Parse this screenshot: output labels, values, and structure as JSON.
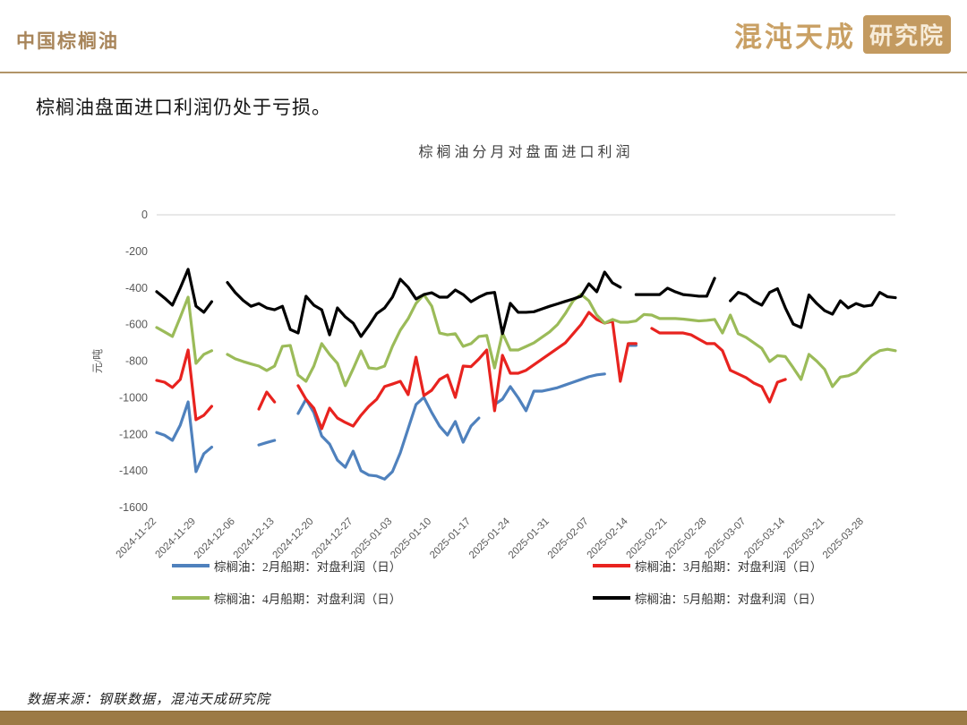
{
  "header": {
    "title": "中国棕榈油",
    "logo_script": "混沌天成",
    "logo_badge": "研究院"
  },
  "subtitle": "棕榈油盘面进口利润仍处于亏损。",
  "footer": {
    "source": "数据来源：钢联数据，混沌天成研究院"
  },
  "colors": {
    "accent_gold": "#a8855a",
    "rule_gold": "#b19468",
    "footer_bar": "#9c7a45",
    "grid_line": "#d9d9d9",
    "axis_text": "#595959",
    "series_blue": "#4f81bd",
    "series_red": "#e8231f",
    "series_green": "#9bbb59",
    "series_black": "#000000"
  },
  "chart_data": {
    "type": "line",
    "title": "棕榈油分月对盘面进口利润",
    "xlabel": "",
    "ylabel": "元/吨",
    "ylim": [
      -1600,
      0
    ],
    "y_ticks": [
      0,
      -200,
      -400,
      -600,
      -800,
      -1000,
      -1200,
      -1400,
      -1600
    ],
    "grid": "zero-line-only",
    "legend_position": "bottom",
    "points_per_label": 5,
    "categories": [
      "2024-11-22",
      "2024-11-29",
      "2024-12-06",
      "2024-12-13",
      "2024-12-20",
      "2024-12-27",
      "2025-01-03",
      "2025-01-10",
      "2025-01-17",
      "2025-01-24",
      "2025-01-31",
      "2025-02-07",
      "2025-02-14",
      "2025-02-21",
      "2025-02-28",
      "2025-03-07",
      "2025-03-14",
      "2025-03-21",
      "2025-03-28"
    ],
    "series": [
      {
        "name": "棕榈油：2月船期：对盘利润（日）",
        "color": "#4f81bd",
        "values": [
          -1190,
          -1205,
          -1233,
          -1150,
          -1023,
          -1404,
          -1306,
          -1270,
          null,
          null,
          null,
          null,
          null,
          -1258,
          -1245,
          -1233,
          null,
          null,
          -1086,
          -1008,
          -1081,
          -1209,
          -1253,
          -1341,
          -1380,
          -1292,
          -1399,
          -1423,
          -1428,
          -1445,
          -1404,
          -1301,
          -1169,
          -1037,
          -998,
          -1081,
          -1155,
          -1204,
          -1130,
          -1243,
          -1155,
          -1111,
          null,
          -1037,
          -1008,
          -939,
          -1000,
          -1071,
          -964,
          -964,
          -955,
          -945,
          -930,
          -915,
          -900,
          -885,
          -875,
          -870,
          null,
          null,
          -714,
          -714,
          null,
          null,
          null,
          null,
          null,
          null,
          null,
          null,
          null,
          null,
          null,
          null,
          null,
          null,
          null,
          null,
          null,
          null,
          null,
          null,
          null,
          null,
          null,
          null,
          null,
          null,
          null,
          null,
          null,
          null,
          null,
          null,
          null
        ]
      },
      {
        "name": "棕榈油：3月船期：对盘利润（日）",
        "color": "#e8231f",
        "values": [
          -905,
          -915,
          -944,
          -900,
          -739,
          -1120,
          -1096,
          -1047,
          null,
          null,
          null,
          null,
          null,
          -1062,
          -969,
          -1023,
          null,
          null,
          -934,
          -1008,
          -1057,
          -1169,
          -1057,
          -1111,
          -1135,
          -1155,
          -1096,
          -1047,
          -1008,
          -939,
          -925,
          -910,
          -983,
          -778,
          -988,
          -959,
          -900,
          -876,
          -998,
          -827,
          -830,
          -788,
          -739,
          -1071,
          -768,
          -866,
          -866,
          -850,
          -820,
          -790,
          -760,
          -730,
          -700,
          -650,
          -600,
          -533,
          -572,
          -592,
          -582,
          -910,
          -704,
          -704,
          null,
          -621,
          -646,
          -646,
          -646,
          -646,
          -656,
          -680,
          -704,
          -704,
          -743,
          -850,
          -870,
          -890,
          -920,
          -939,
          -1023,
          -915,
          -900,
          null,
          null,
          null,
          null,
          null,
          null,
          null,
          null,
          null,
          null,
          null,
          null,
          null,
          null
        ]
      },
      {
        "name": "棕榈油：4月船期：对盘利润（日）",
        "color": "#9bbb59",
        "values": [
          -616,
          -640,
          -665,
          -560,
          -450,
          -812,
          -763,
          -743,
          null,
          -763,
          -787,
          -802,
          -815,
          -827,
          -851,
          -827,
          -719,
          -714,
          -876,
          -910,
          -827,
          -704,
          -763,
          -812,
          -934,
          -842,
          -744,
          -837,
          -842,
          -827,
          -719,
          -631,
          -568,
          -484,
          -436,
          -499,
          -646,
          -656,
          -650,
          -719,
          -704,
          -665,
          -660,
          -837,
          -646,
          -739,
          -739,
          -720,
          -700,
          -670,
          -640,
          -600,
          -540,
          -470,
          -435,
          -470,
          -548,
          -592,
          -572,
          -587,
          -587,
          -580,
          -545,
          -548,
          -567,
          -567,
          -567,
          -570,
          -575,
          -580,
          -577,
          -572,
          -646,
          -548,
          -650,
          -670,
          -700,
          -730,
          -802,
          -770,
          -775,
          -836,
          -900,
          -763,
          -800,
          -845,
          -939,
          -887,
          -880,
          -861,
          -812,
          -770,
          -743,
          -735,
          -743
        ]
      },
      {
        "name": "棕榈油：5月船期：对盘利润（日）",
        "color": "#000000",
        "values": [
          -420,
          -455,
          -494,
          -400,
          -298,
          -499,
          -533,
          -475,
          null,
          -370,
          -425,
          -468,
          -500,
          -485,
          -509,
          -519,
          -500,
          -627,
          -646,
          -445,
          -494,
          -519,
          -656,
          -509,
          -558,
          -592,
          -665,
          -606,
          -540,
          -509,
          -450,
          -352,
          -396,
          -460,
          -436,
          -426,
          -450,
          -450,
          -411,
          -436,
          -475,
          -450,
          -430,
          -424,
          -650,
          -484,
          -533,
          -533,
          -530,
          -515,
          -500,
          -487,
          -473,
          -460,
          -445,
          -377,
          -421,
          -313,
          -372,
          -396,
          null,
          -436,
          -436,
          -436,
          -436,
          -401,
          -421,
          -436,
          -440,
          -445,
          -445,
          -347,
          null,
          -470,
          -424,
          -438,
          -472,
          -494,
          -424,
          -404,
          -509,
          -597,
          -616,
          -438,
          -485,
          -524,
          -543,
          -470,
          -509,
          -485,
          -500,
          -494,
          -424,
          -448,
          -453
        ]
      }
    ]
  }
}
